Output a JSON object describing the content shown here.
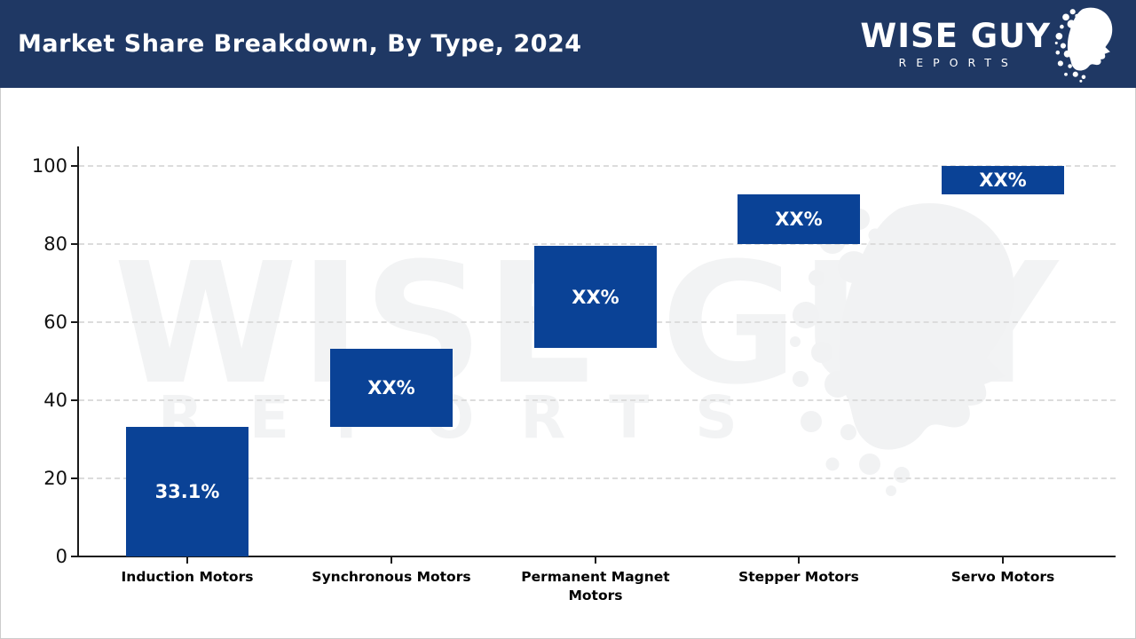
{
  "header": {
    "title": "Market Share Breakdown, By Type, 2024",
    "bg_color": "#1f3864",
    "text_color": "#ffffff"
  },
  "logo": {
    "name_line": "WISE GUY",
    "reports_line": "REPORTS"
  },
  "watermark": {
    "name_line": "WISE GUY",
    "reports_line": "REPORTS"
  },
  "chart_data": {
    "type": "bar",
    "subtype": "waterfall",
    "title": "Market Share Breakdown, By Type, 2024",
    "xlabel": "",
    "ylabel": "",
    "ylim": [
      0,
      100
    ],
    "yticks": [
      0,
      20,
      40,
      60,
      80,
      100
    ],
    "grid": "horizontal-dashed",
    "legend": "none",
    "bar_color": "#0a4296",
    "label_color": "#ffffff",
    "categories": [
      "Induction Motors",
      "Synchronous Motors",
      "Permanent Magnet Motors",
      "Stepper Motors",
      "Servo Motors"
    ],
    "series": [
      {
        "name": "Market Share",
        "segments": [
          {
            "category": "Induction Motors",
            "start": 0,
            "end": 33.1,
            "value": 33.1,
            "label": "33.1%"
          },
          {
            "category": "Synchronous Motors",
            "start": 33.1,
            "end": 53.2,
            "value": 20.1,
            "label": "XX%"
          },
          {
            "category": "Permanent Magnet Motors",
            "start": 53.4,
            "end": 79.5,
            "value": 26.1,
            "label": "XX%"
          },
          {
            "category": "Stepper Motors",
            "start": 80.0,
            "end": 92.7,
            "value": 12.7,
            "label": "XX%"
          },
          {
            "category": "Servo Motors",
            "start": 92.7,
            "end": 100.0,
            "value": 7.3,
            "label": "XX%"
          }
        ]
      }
    ]
  }
}
